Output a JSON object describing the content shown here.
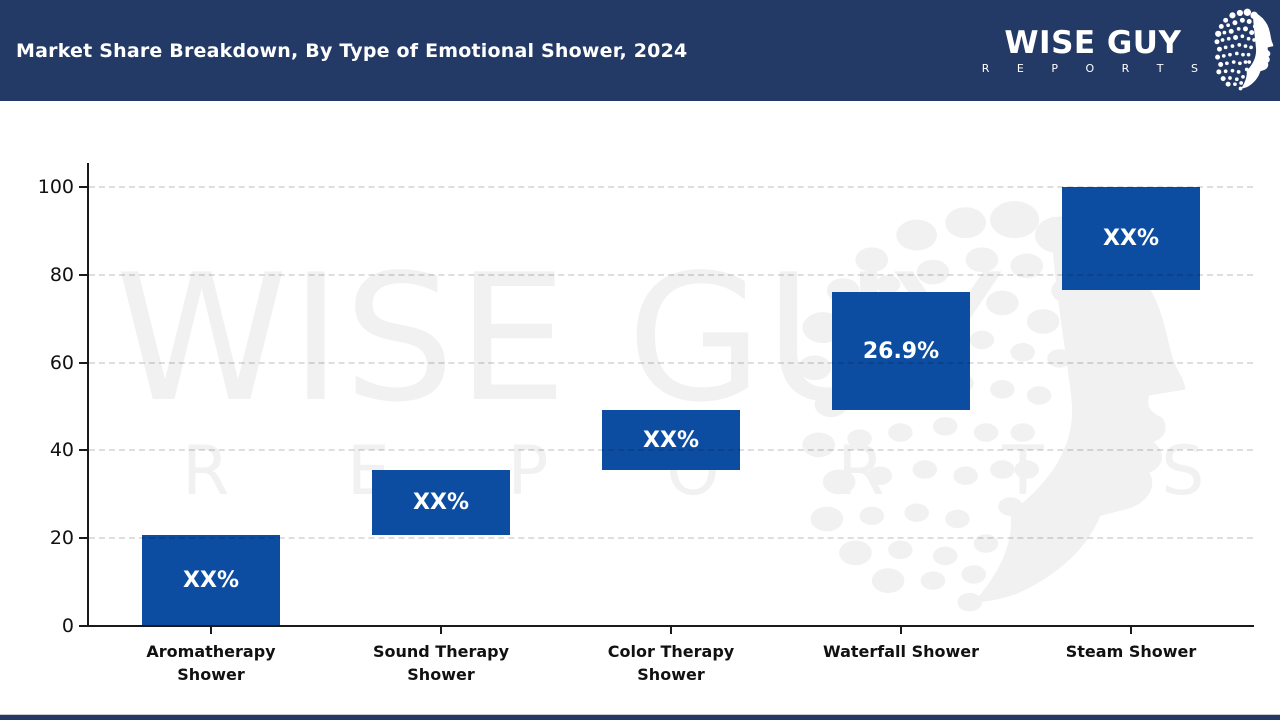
{
  "header": {
    "title": "Market Share Breakdown, By Type of Emotional Shower, 2024",
    "logo": {
      "name": "WISE GUY",
      "sub": "R E P O R T S"
    }
  },
  "watermark": {
    "name": "WISE GUY",
    "sub": "R E P O R T S"
  },
  "colors": {
    "header_bg": "#243a66",
    "footer_bg": "#243a66",
    "bar_fill": "#0c4da1",
    "bar_label": "#ffffff",
    "axis": "#1a1a1a",
    "tick_label": "#111111",
    "grid": "rgba(0,0,0,0.13)",
    "watermark": "#f1f1f1",
    "title_color": "#ffffff"
  },
  "chart_data": {
    "type": "bar",
    "subtype": "floating-segment-waterfall",
    "title": "Market Share Breakdown, By Type of Emotional Shower, 2024",
    "xlabel": "",
    "ylabel": "",
    "ylim": [
      0,
      105.5
    ],
    "yticks": [
      0,
      20,
      40,
      60,
      80,
      100
    ],
    "grid": "horizontal-dashed",
    "legend": false,
    "categories": [
      "Aromatherapy Shower",
      "Sound Therapy Shower",
      "Color Therapy Shower",
      "Waterfall Shower",
      "Steam Shower"
    ],
    "category_label_lines": [
      [
        "Aromatherapy",
        "Shower"
      ],
      [
        "Sound Therapy",
        "Shower"
      ],
      [
        "Color Therapy",
        "Shower"
      ],
      [
        "Waterfall Shower"
      ],
      [
        "Steam Shower"
      ]
    ],
    "segments": [
      {
        "category": "Aromatherapy Shower",
        "from": 0,
        "to": 20.8,
        "label": "XX%"
      },
      {
        "category": "Sound Therapy Shower",
        "from": 20.8,
        "to": 35.6,
        "label": "XX%"
      },
      {
        "category": "Color Therapy Shower",
        "from": 35.6,
        "to": 49.1,
        "label": "XX%"
      },
      {
        "category": "Waterfall Shower",
        "from": 49.1,
        "to": 76.0,
        "label": "26.9%",
        "value_shown": 26.9
      },
      {
        "category": "Steam Shower",
        "from": 76.5,
        "to": 100,
        "label": "XX%"
      }
    ]
  }
}
